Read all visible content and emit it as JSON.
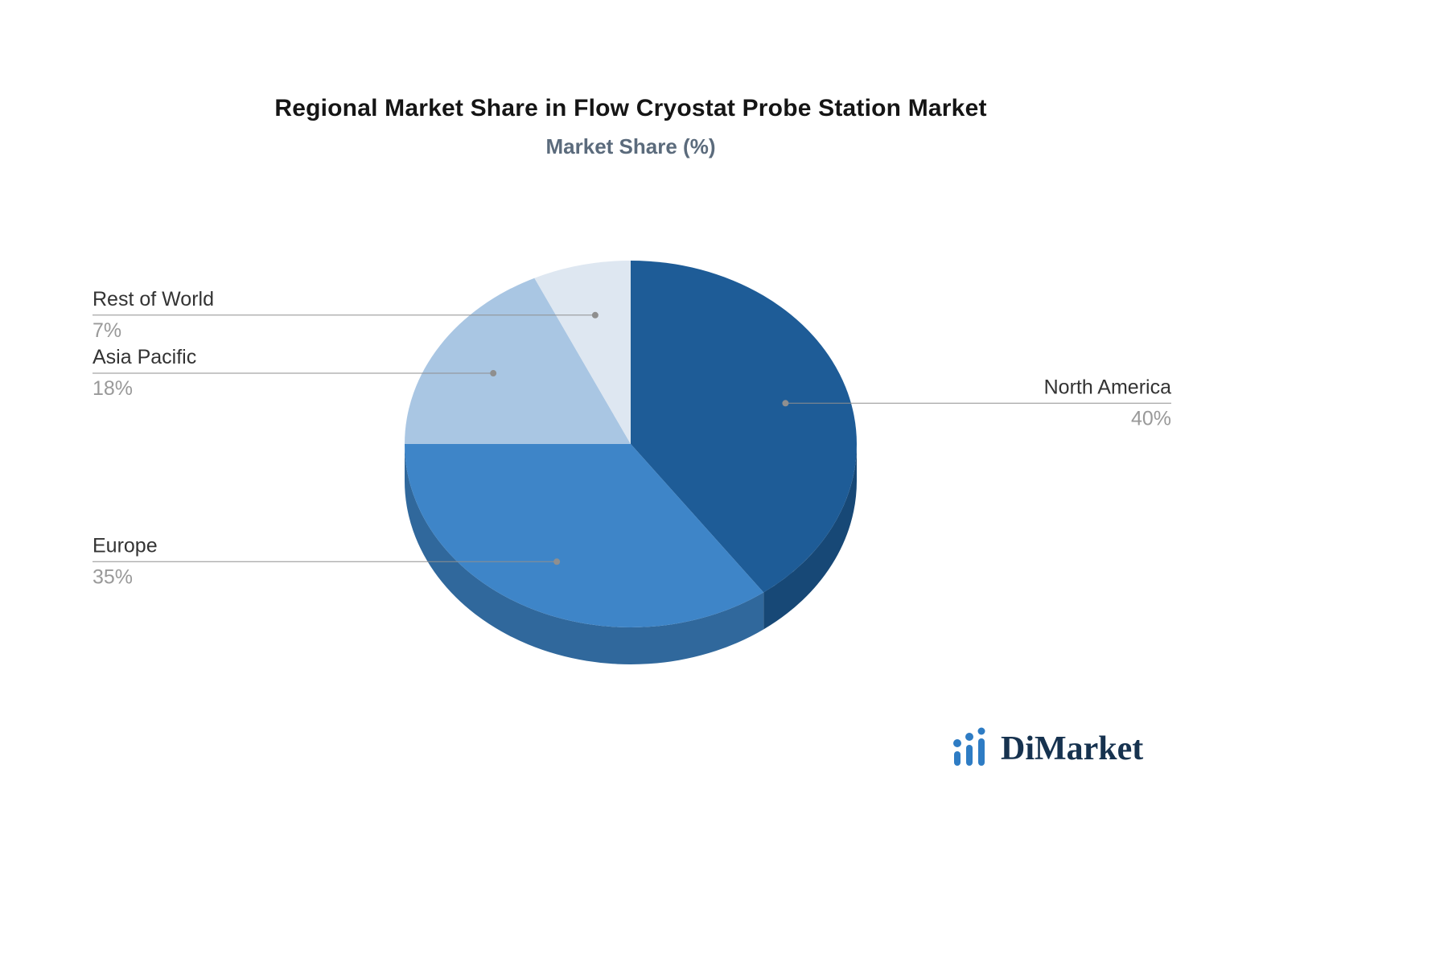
{
  "title": "Regional Market Share in Flow Cryostat Probe Station Market",
  "subtitle": "Market Share (%)",
  "brand": {
    "name": "DiMarket",
    "icon": "bar-chart-icon",
    "text_color": "#16324F",
    "icon_color": "#2E7CC4"
  },
  "chart_data": {
    "type": "pie",
    "style": "3d",
    "title": "Regional Market Share in Flow Cryostat Probe Station Market",
    "subtitle": "Market Share (%)",
    "unit": "%",
    "labels": [
      "North America",
      "Europe",
      "Asia Pacific",
      "Rest of World"
    ],
    "values": [
      40,
      35,
      18,
      7
    ],
    "colors": [
      "#1E5C97",
      "#3E85C8",
      "#A9C6E3",
      "#DEE7F1"
    ],
    "start_angle_deg": -90,
    "direction": "clockwise",
    "legend_position": "none",
    "grid": false,
    "label_name_color": "#333333",
    "label_value_color": "#999999",
    "leader_line_color": "#8F8F8F"
  }
}
